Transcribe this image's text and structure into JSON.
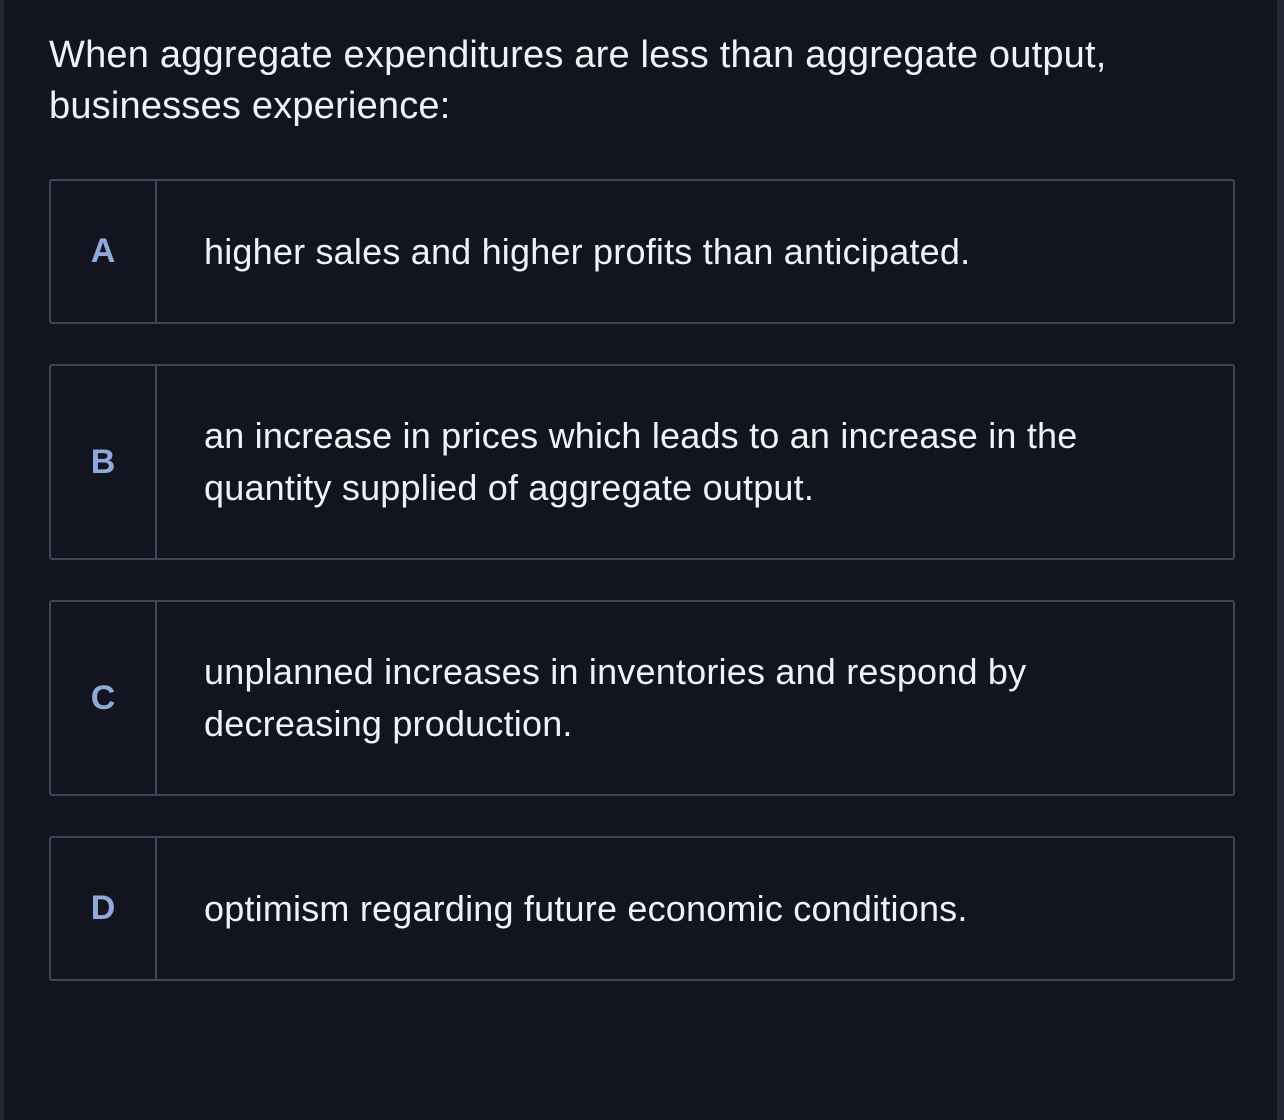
{
  "question": "When aggregate expenditures are less than aggregate output, businesses experience:",
  "options": [
    {
      "letter": "A",
      "text": "higher sales and higher profits than anticipated."
    },
    {
      "letter": "B",
      "text": "an increase in prices which leads to an increase in the quantity supplied of aggregate output."
    },
    {
      "letter": "C",
      "text": "unplanned increases in inventories and respond by decreasing production."
    },
    {
      "letter": "D",
      "text": "optimism regarding future economic conditions."
    }
  ],
  "colors": {
    "background": "#12151f",
    "box_border": "#3f4655",
    "option_letter": "#8fa9db",
    "text": "#f1f2f5",
    "edge_strip": "#232733"
  }
}
